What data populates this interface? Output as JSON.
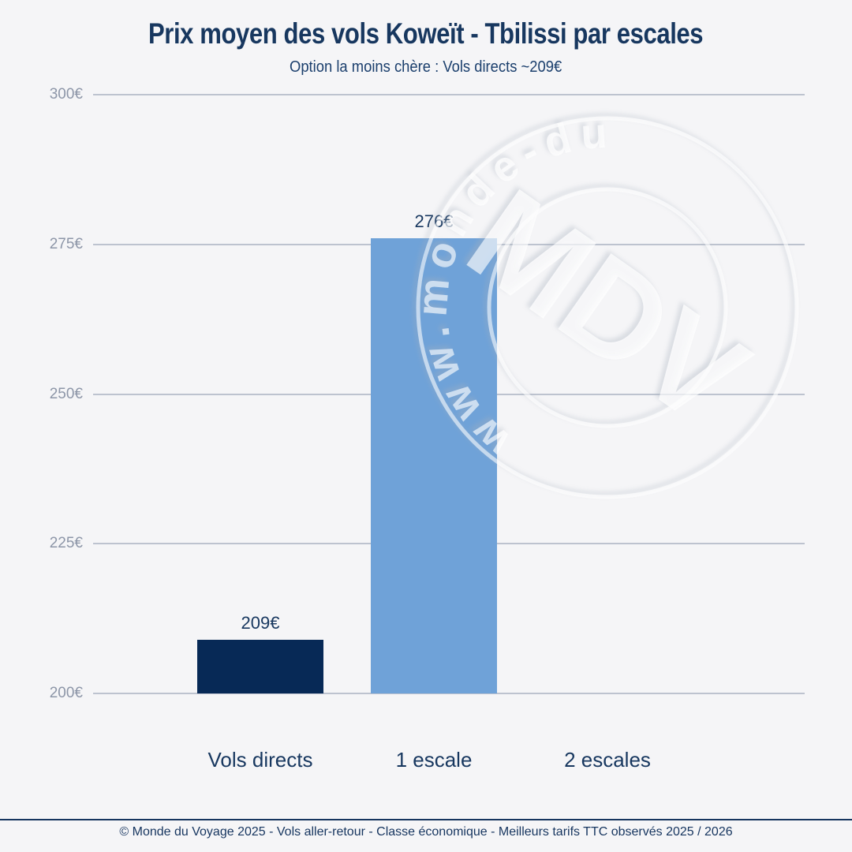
{
  "header": {
    "title": "Prix moyen des vols Koweït - Tbilissi par escales",
    "subtitle": "Option la moins chère : Vols directs ~209€"
  },
  "chart_data": {
    "type": "bar",
    "title": "Prix moyen des vols Koweït - Tbilissi par escales",
    "subtitle": "Option la moins chère : Vols directs ~209€",
    "categories": [
      "Vols directs",
      "1 escale",
      "2 escales"
    ],
    "values": [
      209,
      276,
      null
    ],
    "value_labels": [
      "209€",
      "276€",
      null
    ],
    "bar_colors": [
      "#072956",
      "#6fa2d8",
      null
    ],
    "ylabel": "",
    "xlabel": "",
    "ylim": [
      200,
      300
    ],
    "yticks": [
      300,
      275,
      250,
      225,
      200
    ],
    "ytick_labels": [
      "300€",
      "275€",
      "250€",
      "225€",
      "200€"
    ],
    "grid": true,
    "legend": false,
    "cheapest_option": "Vols directs",
    "cheapest_price_eur": 209
  },
  "watermark": {
    "ring_text": "www.monde-du-voyage.com",
    "center_text": "MDV"
  },
  "footer": {
    "text": "© Monde du Voyage 2025 - Vols aller-retour - Classe économique - Meilleurs tarifs TTC observés 2025 / 2026"
  },
  "colors": {
    "background": "#f5f5f7",
    "title": "#17375f",
    "subtitle": "#1b3f6d",
    "axis_label": "#8d96a8",
    "gridline": "#bdc3cf",
    "bar_dark": "#072956",
    "bar_light": "#6fa2d8",
    "value_label": "#17375f",
    "footer_rule": "#16355f"
  }
}
